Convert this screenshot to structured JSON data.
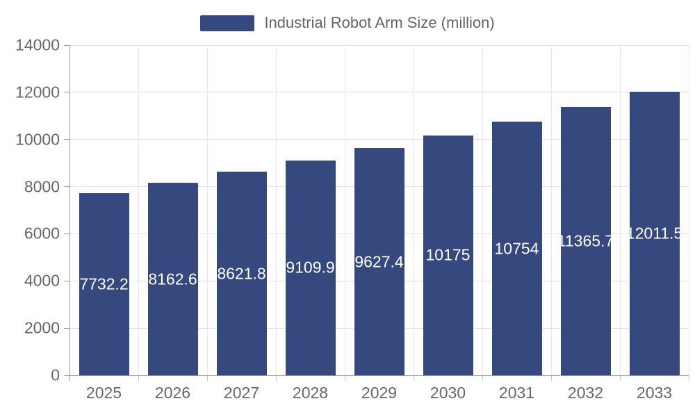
{
  "colors": {
    "bar": "#36497f",
    "grid_h": "#e2e2e2",
    "grid_v": "#e6e6e6",
    "axis": "#9a9a9a",
    "axis_label": "#666666",
    "value_label": "#ffffff",
    "legend_text": "#666666",
    "background": "#ffffff"
  },
  "legend": {
    "label": "Industrial Robot Arm Size (million)"
  },
  "chart_data": {
    "type": "bar",
    "title": "",
    "xlabel": "",
    "ylabel": "",
    "legend_entries": [
      "Industrial Robot Arm Size (million)"
    ],
    "legend_position": "top-center",
    "categories": [
      "2025",
      "2026",
      "2027",
      "2028",
      "2029",
      "2030",
      "2031",
      "2032",
      "2033"
    ],
    "values": [
      7732.2,
      8162.6,
      8621.8,
      9109.9,
      9627.4,
      10175,
      10754,
      11365.7,
      12011.5
    ],
    "value_labels": [
      "7732.2",
      "8162.6",
      "8621.8",
      "9109.9",
      "9627.4",
      "10175",
      "10754",
      "11365.7",
      "12011.5"
    ],
    "ylim": [
      0,
      14000
    ],
    "yticks": [
      0,
      2000,
      4000,
      6000,
      8000,
      10000,
      12000,
      14000
    ],
    "ytick_labels": [
      "0",
      "2000",
      "4000",
      "6000",
      "8000",
      "10000",
      "12000",
      "14000"
    ],
    "grid": true,
    "value_labels_inside": true
  }
}
